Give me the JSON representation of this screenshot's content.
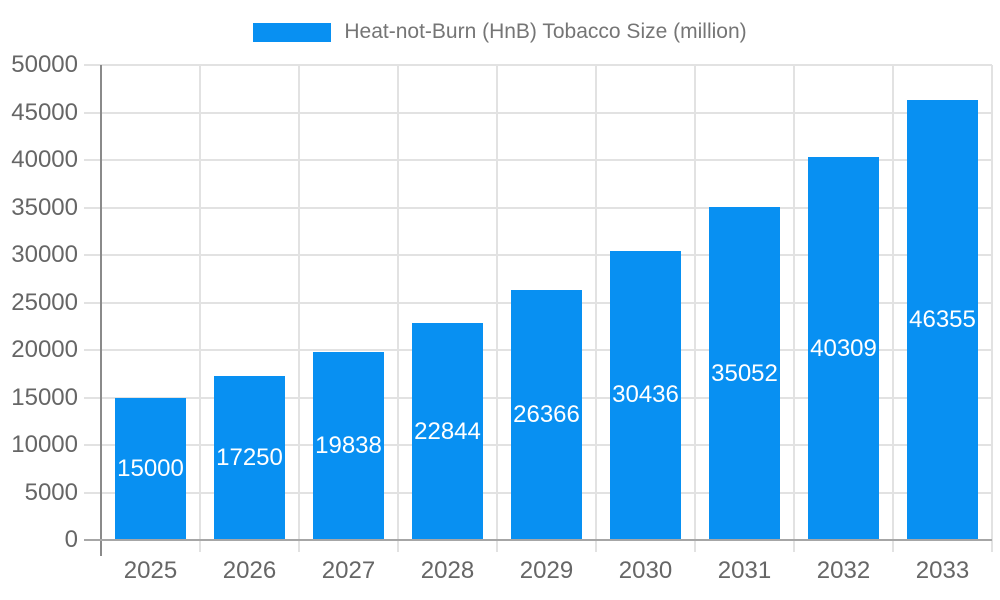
{
  "legend": {
    "label": "Heat-not-Burn (HnB) Tobacco Size (million)"
  },
  "chart_data": {
    "type": "bar",
    "title": "",
    "xlabel": "",
    "ylabel": "",
    "legend_entries": [
      "Heat-not-Burn (HnB) Tobacco Size (million)"
    ],
    "legend_position": "top-center",
    "categories": [
      "2025",
      "2026",
      "2027",
      "2028",
      "2029",
      "2030",
      "2031",
      "2032",
      "2033"
    ],
    "series": [
      {
        "name": "Heat-not-Burn (HnB) Tobacco Size (million)",
        "values": [
          15000,
          17250,
          19838,
          22844,
          26366,
          30436,
          35052,
          40309,
          46355
        ]
      }
    ],
    "values": [
      15000,
      17250,
      19838,
      22844,
      26366,
      30436,
      35052,
      40309,
      46355
    ],
    "value_labels_position": "inside-center",
    "ylim": [
      0,
      50000
    ],
    "ytick_step": 5000,
    "ytick_labels": [
      "0",
      "5000",
      "10000",
      "15000",
      "20000",
      "25000",
      "30000",
      "35000",
      "40000",
      "45000",
      "50000"
    ],
    "grid": true
  },
  "colors": {
    "bar": "#0890f2",
    "grid": "#e2e2e2",
    "axis_y_line": "#8a8a8a",
    "axis_x_line": "#a6a6a6",
    "axis_text": "#666666",
    "legend_text": "#757575",
    "value_label_text": "#ffffff",
    "background": "#ffffff"
  }
}
